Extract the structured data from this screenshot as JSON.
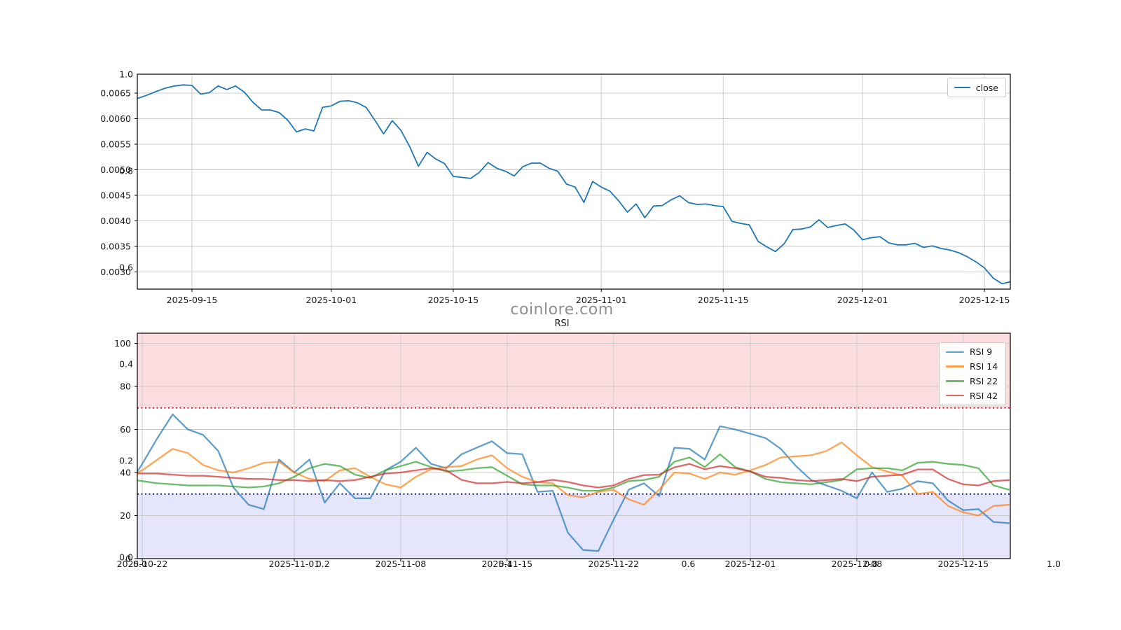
{
  "watermark": "coinlore.com",
  "figure_axis": {
    "xticks": [
      "0.0",
      "0.2",
      "0.4",
      "0.6",
      "0.8",
      "1.0"
    ],
    "yticks": [
      "1.0",
      "0.8",
      "0.6",
      "0.4",
      "0.2",
      "0.0"
    ],
    "color": "#1a1a1a"
  },
  "chart_data": [
    {
      "type": "line",
      "name": "price-close",
      "title": "",
      "legend_position": "upper right",
      "grid": true,
      "grid_color": "#cccccc",
      "xlim": [
        "2025-09-08",
        "2025-12-18"
      ],
      "ylim": [
        0.00266,
        0.00687
      ],
      "yticks": [
        "0.0030",
        "0.0035",
        "0.0040",
        "0.0045",
        "0.0050",
        "0.0055",
        "0.0060",
        "0.0065"
      ],
      "xticks": [
        "2025-09-15",
        "2025-10-01",
        "2025-10-15",
        "2025-11-01",
        "2025-11-15",
        "2025-12-01",
        "2025-12-15"
      ],
      "series": [
        {
          "name": "close",
          "color": "#1f77b4",
          "opacity": 1,
          "width": 1.8,
          "start": "2025-09-08",
          "interval_days": 1,
          "values": [
            0.00636,
            0.00641,
            0.00647,
            0.00654,
            0.0066,
            0.00664,
            0.00666,
            0.00665,
            0.00648,
            0.00651,
            0.00664,
            0.00657,
            0.00664,
            0.00652,
            0.00632,
            0.00617,
            0.00617,
            0.00612,
            0.00597,
            0.00574,
            0.0058,
            0.00576,
            0.00622,
            0.00625,
            0.00634,
            0.00635,
            0.00631,
            0.00622,
            0.00597,
            0.0057,
            0.00596,
            0.00577,
            0.00545,
            0.00507,
            0.00534,
            0.00521,
            0.00512,
            0.00487,
            0.00485,
            0.00483,
            0.00495,
            0.00514,
            0.00503,
            0.00497,
            0.00488,
            0.00506,
            0.00513,
            0.00513,
            0.00503,
            0.00497,
            0.00472,
            0.00466,
            0.00436,
            0.00477,
            0.00466,
            0.00458,
            0.00439,
            0.00417,
            0.00433,
            0.00406,
            0.00429,
            0.0043,
            0.00441,
            0.00449,
            0.00436,
            0.00432,
            0.00433,
            0.0043,
            0.00428,
            0.00399,
            0.00395,
            0.00392,
            0.0036,
            0.00349,
            0.0034,
            0.00355,
            0.00383,
            0.00384,
            0.00388,
            0.00402,
            0.00387,
            0.00391,
            0.00394,
            0.00382,
            0.00363,
            0.00367,
            0.00369,
            0.00357,
            0.00353,
            0.00353,
            0.00356,
            0.00348,
            0.00351,
            0.00346,
            0.00343,
            0.00338,
            0.0033,
            0.0032,
            0.00308,
            0.00288,
            0.00277,
            0.00281
          ]
        }
      ]
    },
    {
      "type": "line",
      "name": "rsi",
      "title": "RSI",
      "legend_position": "upper right",
      "grid": true,
      "grid_color": "#cccccc",
      "xlim": [
        "2025-10-21",
        "2025-12-18"
      ],
      "ylim": [
        0,
        104.7
      ],
      "yticks": [
        0,
        20,
        40,
        60,
        80,
        100
      ],
      "xticks": [
        "2025-10-22",
        "2025-11-01",
        "2025-11-08",
        "2025-11-15",
        "2025-11-22",
        "2025-12-01",
        "2025-12-08",
        "2025-12-15"
      ],
      "hlines": [
        {
          "value": 70,
          "color": "#cc1122",
          "style": "dotted",
          "meaning": "overbought"
        },
        {
          "value": 30,
          "color": "#000099",
          "style": "dotted",
          "meaning": "oversold"
        }
      ],
      "bands": [
        {
          "from": 70,
          "to": 104.7,
          "color": "rgba(230,30,45,0.15)",
          "meaning": "overbought-zone"
        },
        {
          "from": 0,
          "to": 30,
          "color": "rgba(45,45,230,0.12)",
          "meaning": "oversold-zone"
        }
      ],
      "series": [
        {
          "name": "RSI 9",
          "color": "#1f77b4",
          "opacity": 0.7,
          "width": 2.3,
          "start": "2025-10-21",
          "interval_days": 1,
          "values": [
            33,
            44,
            56,
            67,
            60,
            57.5,
            50,
            33,
            25,
            23,
            46,
            40,
            46,
            26,
            35,
            28,
            28,
            41,
            45,
            51.5,
            44,
            42,
            48.5,
            51.5,
            54.5,
            49,
            48.5,
            31,
            31.5,
            12,
            4,
            3.5,
            18,
            32,
            35,
            29,
            51.5,
            51,
            46,
            61.5,
            60,
            58,
            56,
            51,
            43,
            36.5,
            34,
            31.5,
            28,
            40,
            31,
            32.5,
            36,
            35,
            27,
            22.5,
            23,
            17,
            16.5
          ]
        },
        {
          "name": "RSI 14",
          "color": "#ff7f0e",
          "opacity": 0.7,
          "width": 2.3,
          "start": "2025-10-21",
          "interval_days": 1,
          "values": [
            37,
            41,
            46,
            51,
            49,
            43.5,
            41,
            40,
            42,
            44.5,
            45,
            40,
            37,
            36,
            41,
            42,
            38,
            34.5,
            33,
            38,
            41.5,
            42.5,
            43,
            46,
            48,
            42,
            38,
            35.5,
            35,
            29.5,
            28.5,
            31,
            32,
            27.5,
            25,
            32,
            40,
            39.5,
            37,
            40,
            39,
            41,
            43.5,
            47,
            47.5,
            48,
            50,
            54,
            48,
            42.5,
            40.5,
            38.5,
            30,
            31,
            24.5,
            21.5,
            20,
            24.5,
            25
          ]
        },
        {
          "name": "RSI 22",
          "color": "#2ca02c",
          "opacity": 0.7,
          "width": 2.3,
          "start": "2025-10-21",
          "interval_days": 1,
          "values": [
            37,
            36,
            35,
            34.5,
            34,
            34,
            34,
            33.5,
            33,
            33.5,
            35,
            38,
            42,
            44,
            43,
            39,
            37.5,
            41,
            43,
            45,
            42.5,
            40.5,
            41,
            42,
            42.5,
            38.5,
            34.5,
            34,
            34,
            33,
            31.5,
            31.5,
            33,
            36,
            36.5,
            38,
            45,
            47,
            42.5,
            48.5,
            42.5,
            40.5,
            37,
            35.5,
            35,
            34.5,
            35.5,
            36.5,
            41.5,
            42,
            42,
            41,
            44.5,
            45,
            44,
            43.5,
            42,
            34,
            32
          ]
        },
        {
          "name": "RSI 42",
          "color": "#d62728",
          "opacity": 0.7,
          "width": 2.3,
          "start": "2025-10-21",
          "interval_days": 1,
          "values": [
            39.5,
            39.5,
            39.5,
            39,
            38.5,
            38.5,
            38,
            37.5,
            37,
            37,
            36.5,
            36.5,
            36,
            36.5,
            36,
            36.5,
            38,
            39.5,
            40,
            41,
            42,
            41,
            36.6,
            35,
            35,
            35.6,
            35,
            35.5,
            36.6,
            35.6,
            34,
            33,
            34,
            37,
            38.8,
            39,
            42.4,
            44,
            41.5,
            43,
            42,
            40.5,
            38,
            37.5,
            36.5,
            36,
            36.5,
            37,
            36,
            38,
            38.5,
            39,
            41.4,
            41.4,
            37,
            34.5,
            34,
            36,
            36.5
          ]
        }
      ]
    }
  ]
}
